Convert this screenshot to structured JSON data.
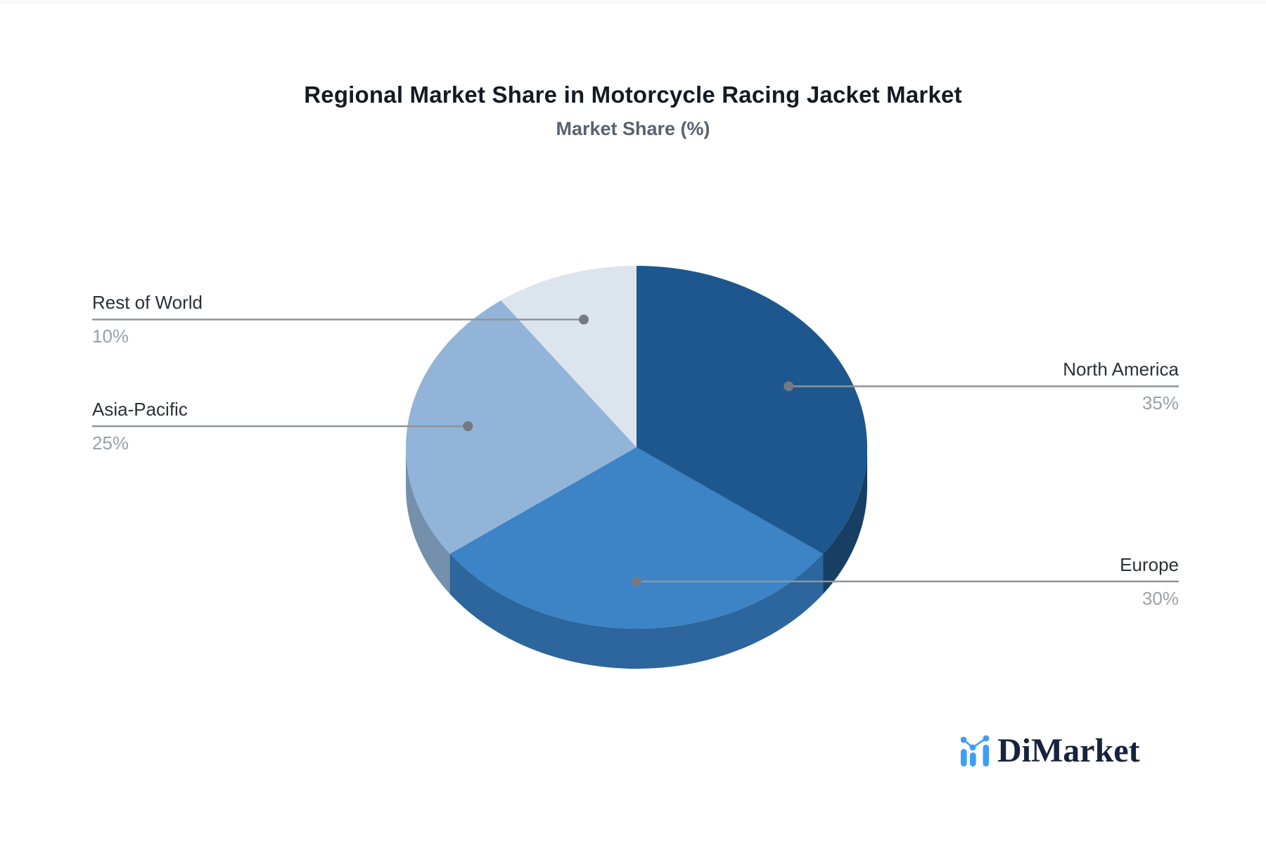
{
  "page": {
    "background": "#ffffff",
    "top_strip_color": "#f7f8fa"
  },
  "chart_data": {
    "type": "pie",
    "title": "Regional Market Share in Motorcycle Racing Jacket Market",
    "subtitle": "Market Share (%)",
    "unit": "%",
    "legend": "none",
    "labels_style": "callout-lines-with-dots",
    "effect": "3d-depth",
    "start_angle_deg": 0,
    "direction": "clockwise",
    "categories": [
      "North America",
      "Europe",
      "Asia-Pacific",
      "Rest of World"
    ],
    "values": [
      35,
      30,
      25,
      10
    ],
    "slices": [
      {
        "label": "North America",
        "value": 35,
        "color": "#1d578d",
        "side_color": "#163f63",
        "label_side": "right"
      },
      {
        "label": "Europe",
        "value": 30,
        "color": "#3c84c6",
        "side_color": "#2c669c",
        "label_side": "right"
      },
      {
        "label": "Asia-Pacific",
        "value": 25,
        "color": "#92b4d8",
        "side_color": "#7590ac",
        "label_side": "left"
      },
      {
        "label": "Rest of World",
        "value": 10,
        "color": "#dce4ee",
        "side_color": "#b9c6d8",
        "label_side": "left"
      }
    ]
  },
  "branding": {
    "logo_text": "DiMarket",
    "logo_icon": "bar-chart-with-trendline-icon",
    "logo_text_color": "#17233d",
    "logo_icon_color": "#3e9ef5"
  },
  "colors": {
    "title": "#151a21",
    "subtitle": "#59626d",
    "label_text": "#2c3036",
    "value_text": "#9aa1a8",
    "leader_line": "#8f9499",
    "leader_dot": "#767a7e"
  }
}
